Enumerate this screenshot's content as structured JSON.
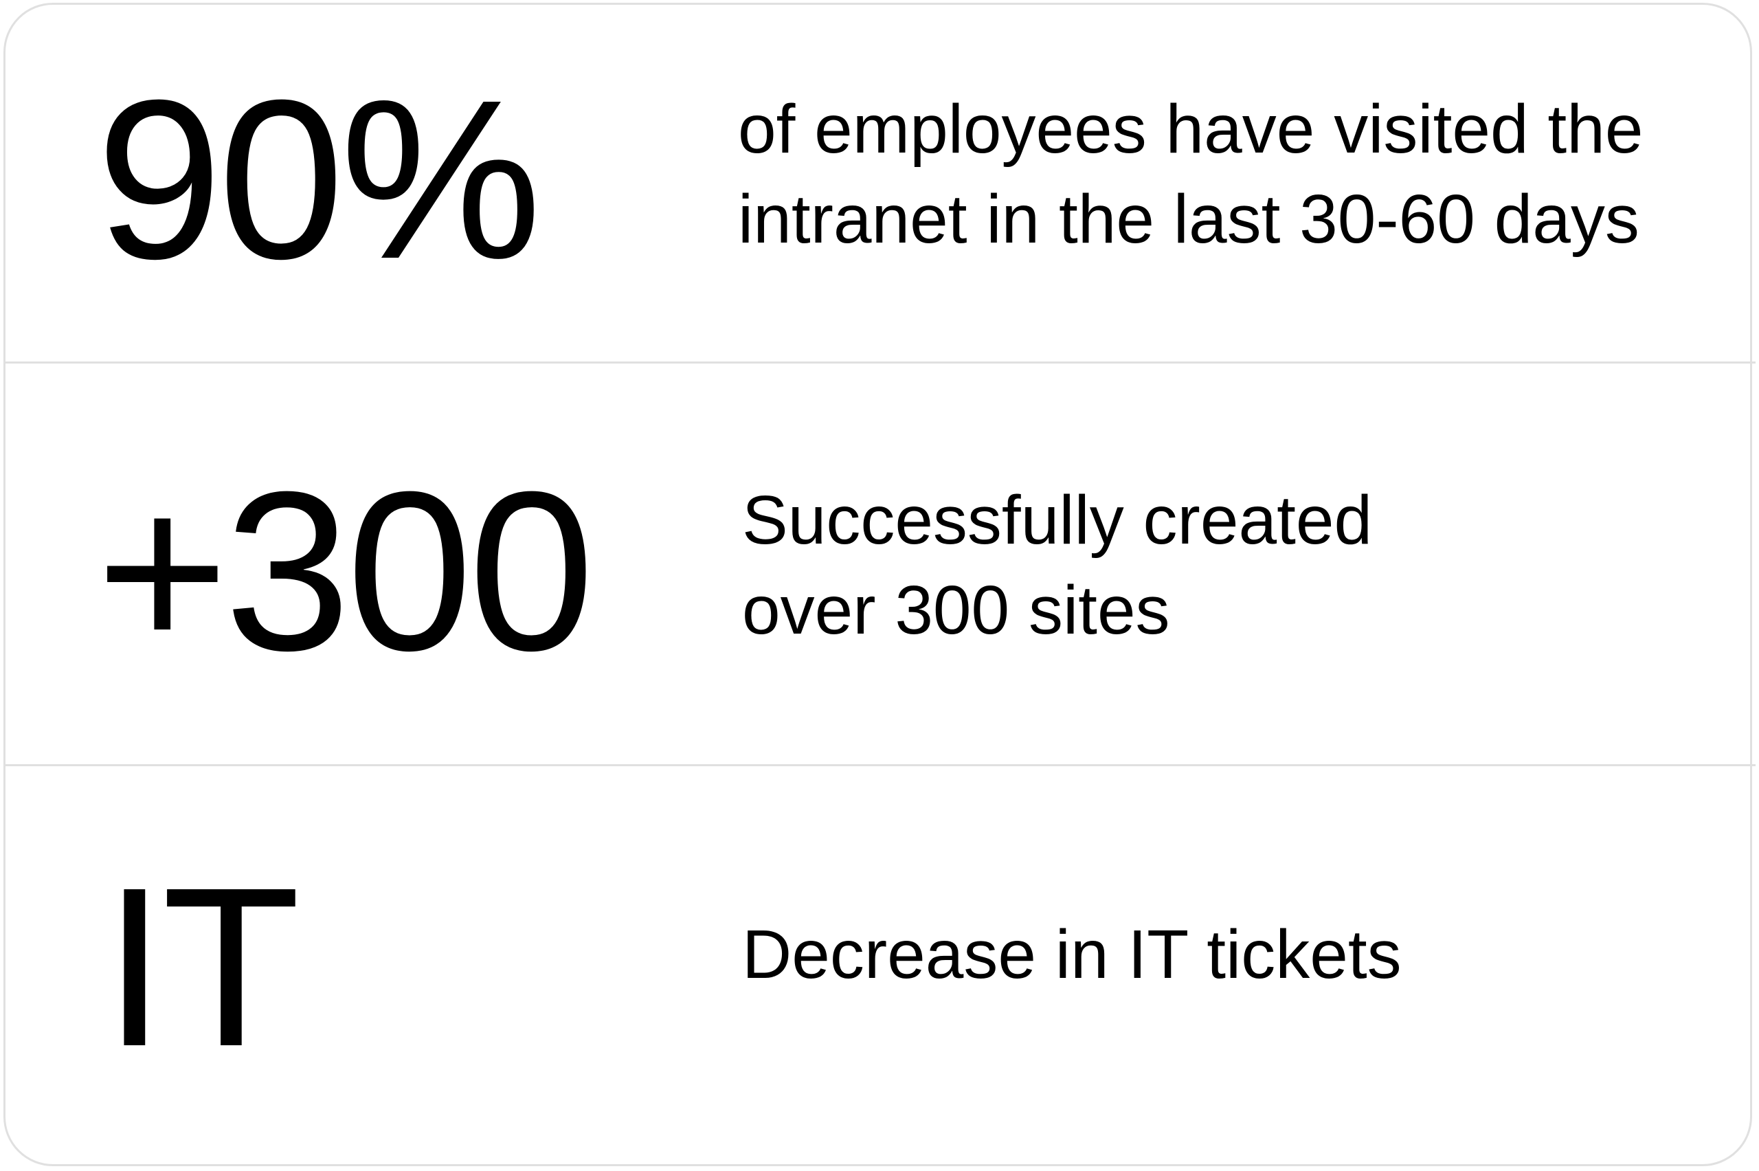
{
  "stats": [
    {
      "value": "90%",
      "description": "of employees have visited the\nintranet in the last 30-60 days"
    },
    {
      "value": "+300",
      "description": "Successfully created\nover 300 sites"
    },
    {
      "value": "IT",
      "description": "Decrease in IT tickets"
    }
  ],
  "colors": {
    "border": "#e0e0e0",
    "text": "#000000",
    "background": "#ffffff"
  }
}
